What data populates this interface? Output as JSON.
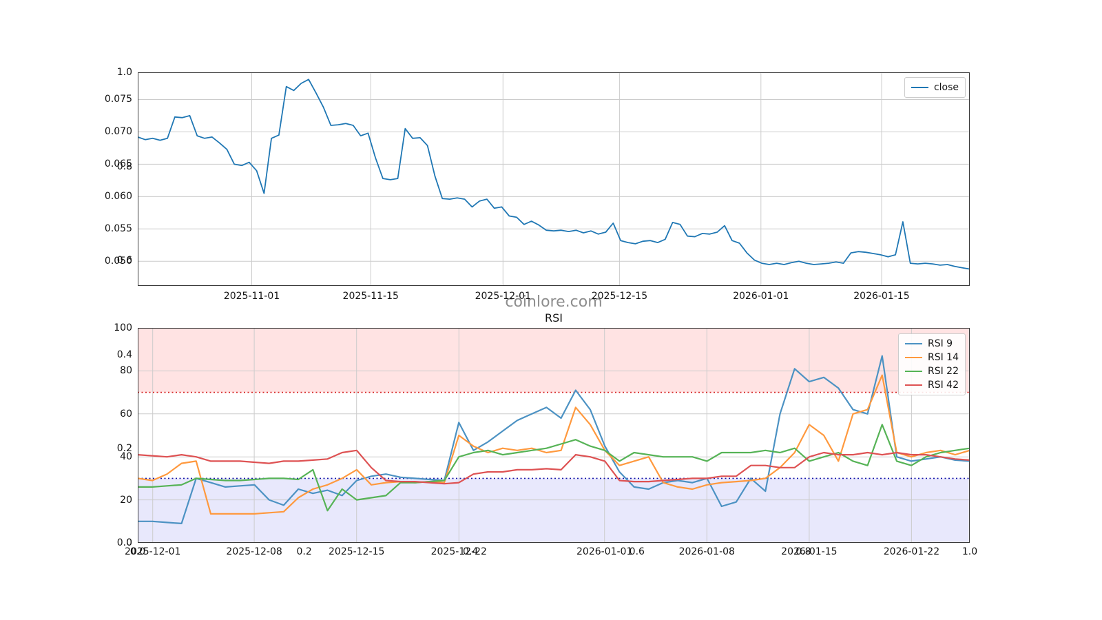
{
  "watermark": "coinlore.com",
  "overlay_axis": {
    "y_ticks": [
      "1.0",
      "0.8",
      "0.6",
      "0.4",
      "0.2",
      "0.0"
    ],
    "x_ticks": [
      "0.0",
      "0.2",
      "0.4",
      "0.6",
      "0.8",
      "1.0"
    ]
  },
  "chart_data": [
    {
      "name": "price-chart",
      "type": "line",
      "title": "",
      "grid": true,
      "grid_color": "#cccccc",
      "legend_position": "upper right",
      "ylim": [
        0.0462,
        0.0792
      ],
      "y_ticks": [
        {
          "label": "0.075",
          "value": 0.075
        },
        {
          "label": "0.070",
          "value": 0.07
        },
        {
          "label": "0.065",
          "value": 0.065
        },
        {
          "label": "0.060",
          "value": 0.06
        },
        {
          "label": "0.055",
          "value": 0.055
        },
        {
          "label": "0.050",
          "value": 0.05
        }
      ],
      "x_ticks": [
        {
          "label": "2025-11-01",
          "pos": 0.137
        },
        {
          "label": "2025-11-15",
          "pos": 0.28
        },
        {
          "label": "2025-12-01",
          "pos": 0.439
        },
        {
          "label": "2025-12-15",
          "pos": 0.579
        },
        {
          "label": "2026-01-01",
          "pos": 0.749
        },
        {
          "label": "2026-01-15",
          "pos": 0.894
        }
      ],
      "series": [
        {
          "name": "close",
          "color": "#1f77b4",
          "line_width": 1.8,
          "values": [
            0.0692,
            0.0688,
            0.069,
            0.0687,
            0.069,
            0.0723,
            0.0722,
            0.0725,
            0.0694,
            0.069,
            0.0692,
            0.0683,
            0.0673,
            0.065,
            0.0648,
            0.0653,
            0.064,
            0.0605,
            0.069,
            0.0695,
            0.077,
            0.0764,
            0.0775,
            0.0781,
            0.076,
            0.0738,
            0.071,
            0.0711,
            0.0713,
            0.071,
            0.0694,
            0.0698,
            0.066,
            0.0628,
            0.0626,
            0.0628,
            0.0705,
            0.069,
            0.0691,
            0.0679,
            0.0632,
            0.0597,
            0.0596,
            0.0598,
            0.0596,
            0.0584,
            0.0593,
            0.0596,
            0.0582,
            0.0584,
            0.057,
            0.0568,
            0.0557,
            0.0562,
            0.0556,
            0.0548,
            0.0547,
            0.0548,
            0.0546,
            0.0548,
            0.0544,
            0.0547,
            0.0542,
            0.0545,
            0.0559,
            0.0532,
            0.0529,
            0.0527,
            0.0531,
            0.0532,
            0.0529,
            0.0534,
            0.056,
            0.0557,
            0.0539,
            0.0538,
            0.0543,
            0.0542,
            0.0545,
            0.0555,
            0.0532,
            0.0528,
            0.0513,
            0.0502,
            0.0497,
            0.0495,
            0.0497,
            0.0495,
            0.0498,
            0.05,
            0.0497,
            0.0495,
            0.0496,
            0.0497,
            0.0499,
            0.0497,
            0.0513,
            0.0515,
            0.0514,
            0.0512,
            0.051,
            0.0507,
            0.051,
            0.0561,
            0.0497,
            0.0496,
            0.0497,
            0.0496,
            0.0494,
            0.0495,
            0.0492,
            0.049,
            0.0488
          ]
        }
      ]
    },
    {
      "name": "rsi-chart",
      "type": "line",
      "title": "RSI",
      "grid": true,
      "grid_color": "#cccccc",
      "legend_position": "upper right",
      "ylim": [
        0,
        100
      ],
      "y_ticks": [
        {
          "label": "100",
          "value": 100
        },
        {
          "label": "80",
          "value": 80
        },
        {
          "label": "60",
          "value": 60
        },
        {
          "label": "40",
          "value": 40
        },
        {
          "label": "20",
          "value": 20
        },
        {
          "label": "0",
          "value": 0
        }
      ],
      "x_ticks": [
        {
          "label": "2025-12-01",
          "pos": 0.018
        },
        {
          "label": "2025-12-08",
          "pos": 0.14
        },
        {
          "label": "2025-12-15",
          "pos": 0.263
        },
        {
          "label": "2025-12-22",
          "pos": 0.386
        },
        {
          "label": "2026-01-01",
          "pos": 0.561
        },
        {
          "label": "2026-01-08",
          "pos": 0.684
        },
        {
          "label": "2026-01-15",
          "pos": 0.807
        },
        {
          "label": "2026-01-22",
          "pos": 0.93
        }
      ],
      "bands": [
        {
          "name": "overbought-band",
          "from": 70,
          "to": 100,
          "color": "rgba(255,70,70,0.15)"
        },
        {
          "name": "oversold-band",
          "from": 0,
          "to": 30,
          "color": "rgba(80,80,230,0.13)"
        }
      ],
      "hlines": [
        {
          "name": "overbought-line",
          "value": 70,
          "color": "#d62020"
        },
        {
          "name": "oversold-line",
          "value": 30,
          "color": "#1515a8"
        }
      ],
      "series": [
        {
          "name": "RSI 9",
          "color": "#4c92c3",
          "line_width": 2.2,
          "values": [
            10,
            10,
            9.5,
            9,
            30,
            28,
            26,
            26.5,
            27,
            20,
            17.5,
            25,
            23,
            24.5,
            22,
            29,
            31,
            32,
            30.5,
            30,
            29.5,
            29,
            56,
            43,
            47,
            52,
            57,
            60,
            63,
            58,
            71,
            62,
            45,
            33,
            26,
            25,
            28,
            29,
            28,
            30,
            17,
            19,
            30,
            24,
            60,
            81,
            75,
            77,
            72,
            62,
            60,
            87,
            40,
            38,
            39,
            40,
            38.5,
            38
          ]
        },
        {
          "name": "RSI 14",
          "color": "#ff993e",
          "line_width": 2.2,
          "values": [
            30,
            29,
            32,
            37,
            38,
            13.5,
            13.5,
            13.5,
            13.5,
            14,
            14.5,
            21,
            25,
            27,
            30,
            34,
            27,
            28,
            28.5,
            28,
            28.5,
            28,
            50,
            45,
            42,
            44,
            43,
            44,
            42,
            43,
            63,
            55,
            43,
            36,
            38,
            40,
            28,
            26,
            25,
            27,
            28,
            28.5,
            29,
            30,
            35,
            42,
            55,
            50,
            38,
            60,
            62,
            78,
            42,
            40,
            42,
            43,
            41,
            43
          ]
        },
        {
          "name": "RSI 22",
          "color": "#56b356",
          "line_width": 2.2,
          "values": [
            26,
            26,
            26.5,
            27,
            30,
            29.5,
            29,
            29,
            29.5,
            30,
            30,
            29.5,
            34,
            15,
            25,
            20,
            21,
            22,
            28,
            28,
            28.5,
            29,
            40,
            42,
            43,
            41,
            42,
            43,
            44,
            46,
            48,
            45,
            43,
            38,
            42,
            41,
            40,
            40,
            40,
            38,
            42,
            42,
            42,
            43,
            42,
            44,
            38,
            40,
            42,
            38,
            36,
            55,
            38,
            36,
            40,
            42,
            43,
            44
          ]
        },
        {
          "name": "RSI 42",
          "color": "#de5253",
          "line_width": 2.2,
          "values": [
            41,
            40.5,
            40,
            41,
            40,
            38,
            38,
            38,
            37.5,
            37,
            38,
            38,
            38.5,
            39,
            42,
            43,
            35,
            29,
            28.5,
            28.5,
            28,
            27.5,
            28,
            32,
            33,
            33,
            34,
            34,
            34.5,
            34,
            41,
            40,
            38,
            29,
            28.5,
            28.5,
            29,
            29.5,
            30,
            30,
            31,
            31,
            36,
            36,
            35,
            35,
            40,
            42,
            41,
            41,
            42,
            41,
            42,
            41,
            41,
            40,
            39,
            38.5
          ]
        }
      ]
    }
  ]
}
